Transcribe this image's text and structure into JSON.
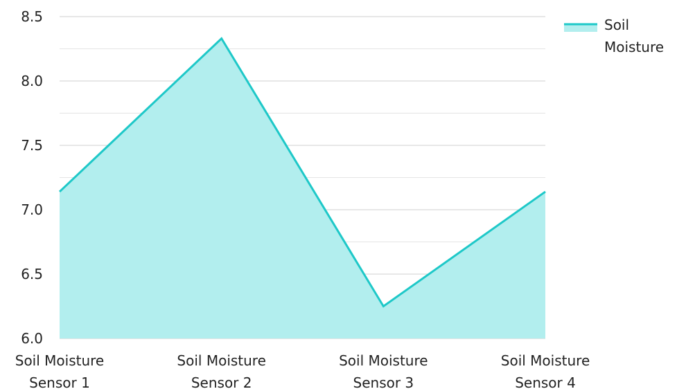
{
  "chart_data": {
    "type": "area",
    "categories": [
      "Soil Moisture Sensor 1",
      "Soil Moisture Sensor 2",
      "Soil Moisture Sensor 3",
      "Soil Moisture Sensor 4"
    ],
    "category_lines": [
      [
        "Soil Moisture",
        "Sensor 1"
      ],
      [
        "Soil Moisture",
        "Sensor 2"
      ],
      [
        "Soil Moisture",
        "Sensor 3"
      ],
      [
        "Soil Moisture",
        "Sensor 4"
      ]
    ],
    "series": [
      {
        "name": "Soil Moisture",
        "values": [
          7.14,
          8.33,
          6.25,
          7.14
        ],
        "line_color": "#1ec8c8",
        "fill_color": "#b2eeee"
      }
    ],
    "ylim": [
      6.0,
      8.5
    ],
    "yticks": [
      "6.0",
      "6.5",
      "7.0",
      "7.5",
      "8.0",
      "8.5"
    ],
    "ytick_values": [
      6.0,
      6.5,
      7.0,
      7.5,
      8.0,
      8.5
    ],
    "minor_grid_step": 0.25,
    "grid": true,
    "grid_color": "#c8c8c8",
    "legend": {
      "position": "top-right",
      "lines": [
        "Soil",
        "Moisture"
      ]
    },
    "title": "",
    "xlabel": "",
    "ylabel": ""
  }
}
